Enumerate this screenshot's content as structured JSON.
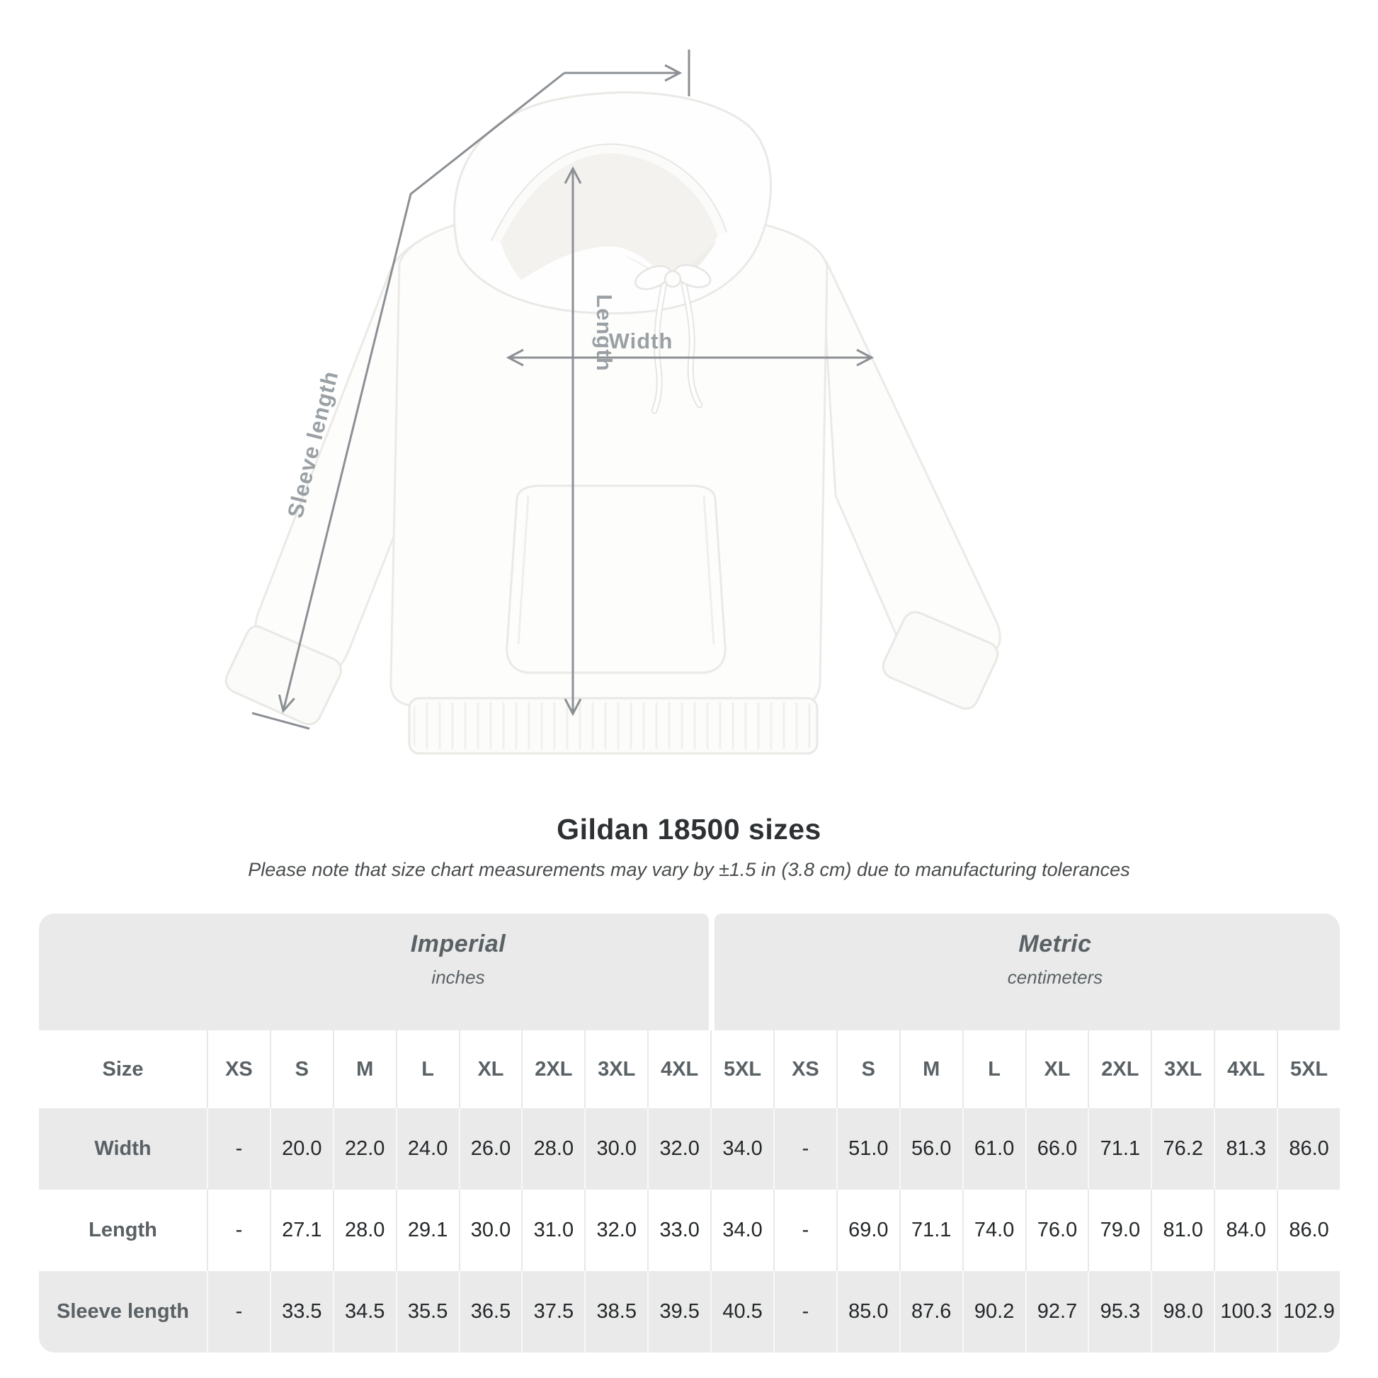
{
  "title": "Gildan 18500 sizes",
  "subtitle": "Please note that size chart measurements may vary by ±1.5 in (3.8 cm) due to manufacturing tolerances",
  "diagram": {
    "labels": {
      "sleeve_length": "Sleeve length",
      "length": "Length",
      "width": "Width"
    }
  },
  "colors": {
    "accent_line": "#8c9094",
    "diagram_label": "#9aa0a4",
    "band_bg": "#eaeaea",
    "stripe_bg": "#eaeaea",
    "header_text": "#5a6165",
    "value_text": "#24282a",
    "title_text": "#2e3133",
    "subtitle_text": "#494c4e"
  },
  "table": {
    "unit_groups": [
      {
        "name": "Imperial",
        "unit": "inches"
      },
      {
        "name": "Metric",
        "unit": "centimeters"
      }
    ],
    "size_header": "Size",
    "sizes": [
      "XS",
      "S",
      "M",
      "L",
      "XL",
      "2XL",
      "3XL",
      "4XL",
      "5XL"
    ],
    "rows": [
      {
        "label": "Width",
        "imperial": [
          "-",
          "20.0",
          "22.0",
          "24.0",
          "26.0",
          "28.0",
          "30.0",
          "32.0",
          "34.0"
        ],
        "metric": [
          "-",
          "51.0",
          "56.0",
          "61.0",
          "66.0",
          "71.1",
          "76.2",
          "81.3",
          "86.0"
        ]
      },
      {
        "label": "Length",
        "imperial": [
          "-",
          "27.1",
          "28.0",
          "29.1",
          "30.0",
          "31.0",
          "32.0",
          "33.0",
          "34.0"
        ],
        "metric": [
          "-",
          "69.0",
          "71.1",
          "74.0",
          "76.0",
          "79.0",
          "81.0",
          "84.0",
          "86.0"
        ]
      },
      {
        "label": "Sleeve length",
        "imperial": [
          "-",
          "33.5",
          "34.5",
          "35.5",
          "36.5",
          "37.5",
          "38.5",
          "39.5",
          "40.5"
        ],
        "metric": [
          "-",
          "85.0",
          "87.6",
          "90.2",
          "92.7",
          "95.3",
          "98.0",
          "100.3",
          "102.9"
        ]
      }
    ]
  }
}
